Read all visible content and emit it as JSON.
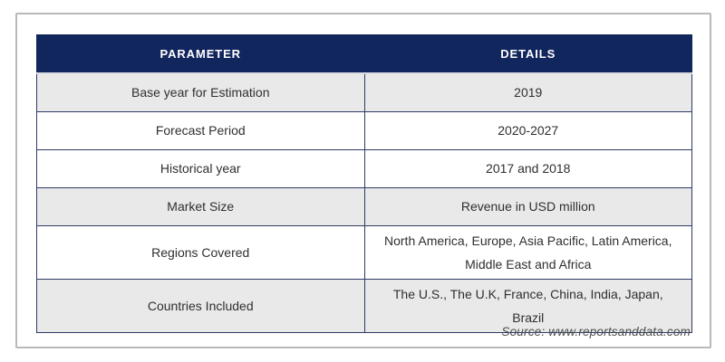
{
  "table": {
    "headers": [
      "PARAMETER",
      "DETAILS"
    ],
    "rows": [
      {
        "parameter": "Base year for Estimation",
        "details": "2019",
        "shaded": true
      },
      {
        "parameter": "Forecast Period",
        "details": "2020-2027",
        "shaded": false
      },
      {
        "parameter": "Historical year",
        "details": "2017 and 2018",
        "shaded": false
      },
      {
        "parameter": "Market Size",
        "details": "Revenue in USD million",
        "shaded": true
      },
      {
        "parameter": "Regions Covered",
        "details": "North America, Europe, Asia Pacific, Latin America, Middle East and Africa",
        "shaded": false
      },
      {
        "parameter": "Countries Included",
        "details": "The U.S., The  U.K, France, China, India, Japan, Brazil",
        "shaded": true
      }
    ]
  },
  "source": "Source: www.reportsanddata.com",
  "colors": {
    "header_bg": "#12265e",
    "header_text": "#ffffff",
    "row_shaded_bg": "#e9e9e9",
    "row_plain_bg": "#ffffff",
    "cell_border": "#2e3b66",
    "header_separator": "#d8dbe0",
    "outer_frame_border": "#b9b9b9",
    "cell_text": "#2f2f2f",
    "source_text": "#4d4d4d"
  }
}
